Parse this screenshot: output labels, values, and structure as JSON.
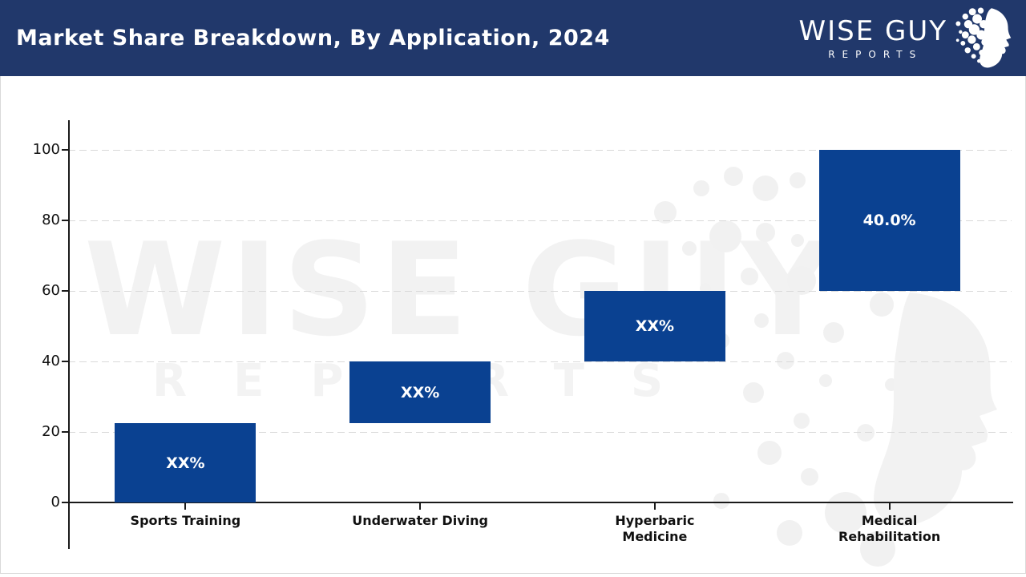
{
  "header": {
    "title": "Market Share Breakdown, By Application, 2024",
    "logo": {
      "line1": "WISE GUY",
      "line2": "REPORTS"
    }
  },
  "watermark": {
    "line1": "WISE GUY",
    "line2": "REPORTS"
  },
  "chart_data": {
    "type": "bar",
    "subtype": "waterfall",
    "title": "Market Share Breakdown, By Application, 2024",
    "categories": [
      "Sports Training",
      "Underwater Diving",
      "Hyperbaric\nMedicine",
      "Medical\nRehabilitation"
    ],
    "segments": [
      {
        "category": "Sports Training",
        "start": 0,
        "end": 22.5,
        "label": "XX%"
      },
      {
        "category": "Underwater Diving",
        "start": 22.5,
        "end": 40,
        "label": "XX%"
      },
      {
        "category": "Hyperbaric Medicine",
        "start": 40,
        "end": 60,
        "label": "XX%"
      },
      {
        "category": "Medical Rehabilitation",
        "start": 60,
        "end": 100,
        "label": "40.0%"
      }
    ],
    "xlabel": "",
    "ylabel": "",
    "ylim": [
      0,
      100
    ],
    "yticks": [
      0,
      20,
      40,
      60,
      80,
      100
    ],
    "grid": "horizontal-dashed",
    "legend": false,
    "bar_color": "#0a4191",
    "colors": {
      "header_bg": "#21386b",
      "grid": "#d9d9d9",
      "axis": "#1a1a1a",
      "watermark": "#f2f2f2",
      "bar_label": "#ffffff"
    }
  }
}
